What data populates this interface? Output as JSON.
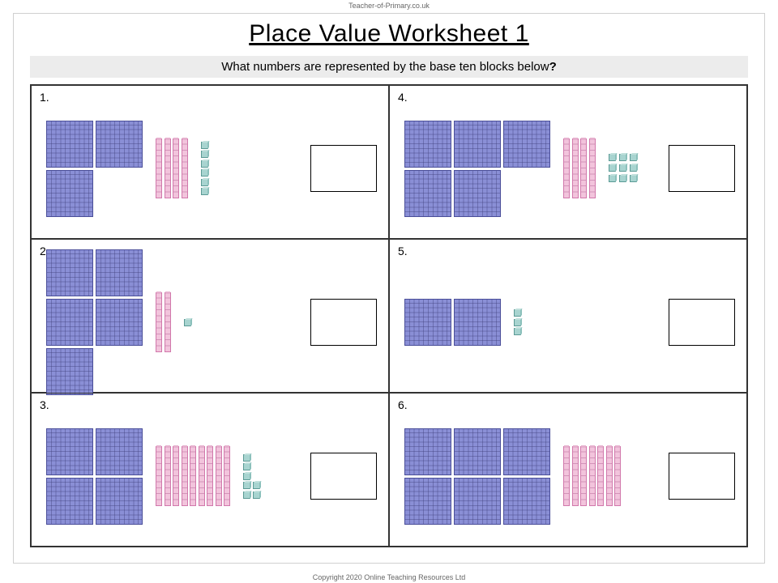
{
  "header": "Teacher-of-Primary.co.uk",
  "footer": "Copyright 2020 Online Teaching Resources Ltd",
  "title": "Place Value Worksheet 1",
  "subtitle_pre": "What numbers are represented by the  base ten blocks below",
  "subtitle_bold": "?",
  "colors": {
    "hundred_fill": "#8a8fd6",
    "hundred_line": "#4a4e99",
    "ten_fill": "#f2c4dc",
    "ten_line": "#d178ab",
    "one_fill": "#a8d4d0",
    "one_line": "#5b9a95",
    "subtitle_bg": "#ececec",
    "border": "#333333"
  },
  "problems": [
    {
      "num": "1.",
      "hundreds": 3,
      "hundreds_layout": [
        [
          1,
          1
        ],
        [
          1
        ]
      ],
      "tens": 4,
      "ones": 6,
      "ones_layout": "column"
    },
    {
      "num": "2.",
      "hundreds": 5,
      "hundreds_layout": [
        [
          1,
          1
        ],
        [
          1,
          1
        ],
        [
          1
        ]
      ],
      "tens": 2,
      "ones": 1,
      "ones_layout": "single"
    },
    {
      "num": "3.",
      "hundreds": 4,
      "hundreds_layout": [
        [
          1,
          1
        ],
        [
          1,
          1
        ]
      ],
      "tens": 9,
      "ones": 7,
      "ones_layout": "col5plus"
    },
    {
      "num": "4.",
      "hundreds": 5,
      "hundreds_layout": [
        [
          1,
          1,
          1
        ],
        [
          1,
          1
        ]
      ],
      "tens": 4,
      "ones": 9,
      "ones_layout": "grid3"
    },
    {
      "num": "5.",
      "hundreds": 2,
      "hundreds_layout": [
        [
          1,
          1
        ]
      ],
      "tens": 0,
      "ones": 3,
      "ones_layout": "column"
    },
    {
      "num": "6.",
      "hundreds": 6,
      "hundreds_layout": [
        [
          1,
          1,
          1
        ],
        [
          1,
          1,
          1
        ]
      ],
      "tens": 7,
      "ones": 0,
      "ones_layout": "none"
    }
  ]
}
